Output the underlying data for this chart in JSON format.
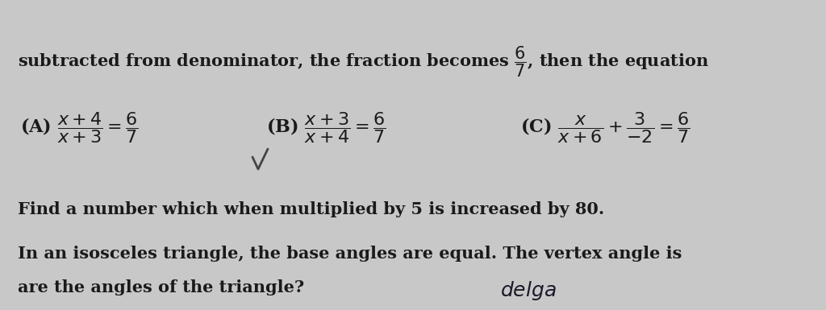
{
  "background_color": "#c8c8c8",
  "text_color": "#1a1a1a",
  "top_text": "subtracted from denominator, the fraction becomes $\\dfrac{6}{7}$, then the equation",
  "optA": "(A) $\\dfrac{x+4}{x+3}=\\dfrac{6}{7}$",
  "optB": "(B) $\\dfrac{x+3}{x+4}=\\dfrac{6}{7}$",
  "optC": "(C) $\\dfrac{x}{x+6}+\\dfrac{3}{-2}=\\dfrac{6}{7}$",
  "line3": "Find a number which when multiplied by 5 is increased by 80.",
  "line4": "In an isosceles triangle, the base angles are equal. The vertex angle is",
  "line5": "are the angles of the triangle?",
  "figsize": [
    10.24,
    3.85
  ],
  "dpi": 100,
  "font_size_main": 15,
  "font_size_eq": 15
}
